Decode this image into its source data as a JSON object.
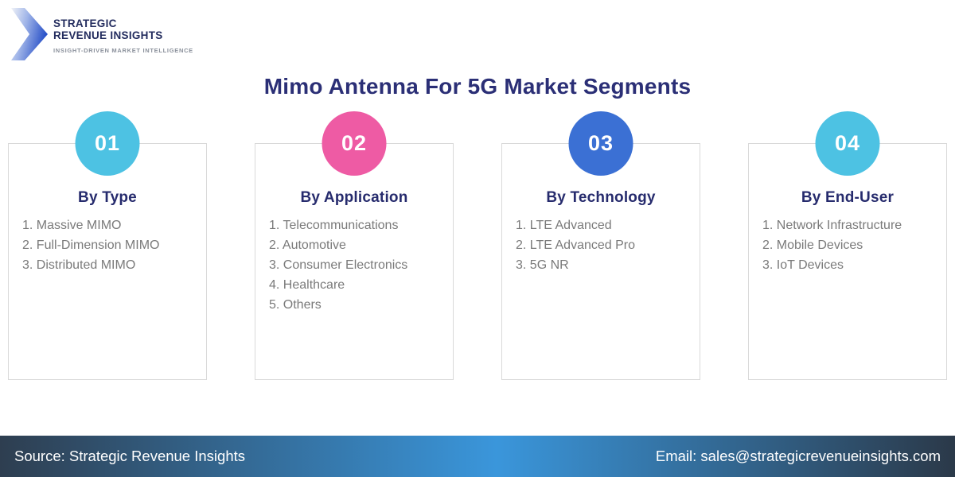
{
  "logo": {
    "line1": "STRATEGIC",
    "line2": "REVENUE INSIGHTS",
    "tagline": "INSIGHT-DRIVEN MARKET INTELLIGENCE",
    "chevron_gradient": {
      "start": "#f0f2f7",
      "mid": "#9fb4e8",
      "end": "#2a52c8"
    }
  },
  "title": "Mimo Antenna For 5G Market Segments",
  "cards": [
    {
      "number": "01",
      "badge_color": "#4dc2e3",
      "heading": "By Type",
      "items": [
        "1. Massive MIMO",
        "2. Full-Dimension MIMO",
        "3. Distributed MIMO"
      ]
    },
    {
      "number": "02",
      "badge_color": "#ee5ba4",
      "heading": "By Application",
      "items": [
        "1. Telecommunications",
        "2. Automotive",
        "3. Consumer Electronics",
        "4. Healthcare",
        "5. Others"
      ]
    },
    {
      "number": "03",
      "badge_color": "#3b70d4",
      "heading": "By Technology",
      "items": [
        "1. LTE Advanced",
        "2. LTE Advanced Pro",
        "3. 5G NR"
      ]
    },
    {
      "number": "04",
      "badge_color": "#4dc2e3",
      "heading": "By End-User",
      "items": [
        "1. Network Infrastructure",
        "2. Mobile Devices",
        "3. IoT Devices"
      ]
    }
  ],
  "footer": {
    "source": "Source: Strategic Revenue Insights",
    "email": "Email: sales@strategicrevenueinsights.com",
    "gradient_left": "#2e3e50",
    "gradient_mid": "#3a96db",
    "gradient_right": "#2b3949"
  },
  "colors": {
    "title_text": "#2b2f76",
    "heading_text": "#262b6d",
    "item_text": "#7a7a7a",
    "card_border": "#d9d9d9",
    "badge_text": "#ffffff"
  }
}
